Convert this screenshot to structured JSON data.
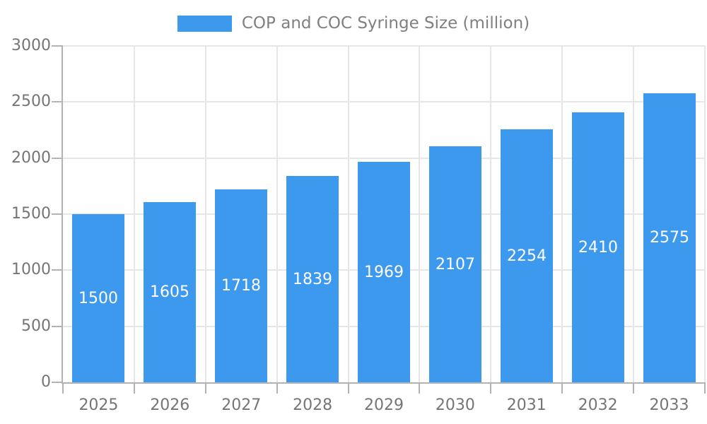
{
  "legend": {
    "label": "COP and COC Syringe Size (million)"
  },
  "chart_data": {
    "type": "bar",
    "title": "COP and COC Syringe Size (million)",
    "categories": [
      "2025",
      "2026",
      "2027",
      "2028",
      "2029",
      "2030",
      "2031",
      "2032",
      "2033"
    ],
    "values": [
      1500,
      1605,
      1718,
      1839,
      1969,
      2107,
      2254,
      2410,
      2575
    ],
    "series": [
      {
        "name": "COP and COC Syringe Size (million)",
        "values": [
          1500,
          1605,
          1718,
          1839,
          1969,
          2107,
          2254,
          2410,
          2575
        ]
      }
    ],
    "xlabel": "",
    "ylabel": "",
    "ylim": [
      0,
      3000
    ],
    "yticks": [
      0,
      500,
      1000,
      1500,
      2000,
      2500,
      3000
    ],
    "grid": true,
    "legend_position": "top-center",
    "bar_color": "#3D99ED",
    "value_label_color": "#FFFFFF",
    "grid_color": "#E6E6E6",
    "axis_color": "#B3B3B3",
    "tick_label_color": "#757575",
    "legend_text_color": "#808080"
  }
}
